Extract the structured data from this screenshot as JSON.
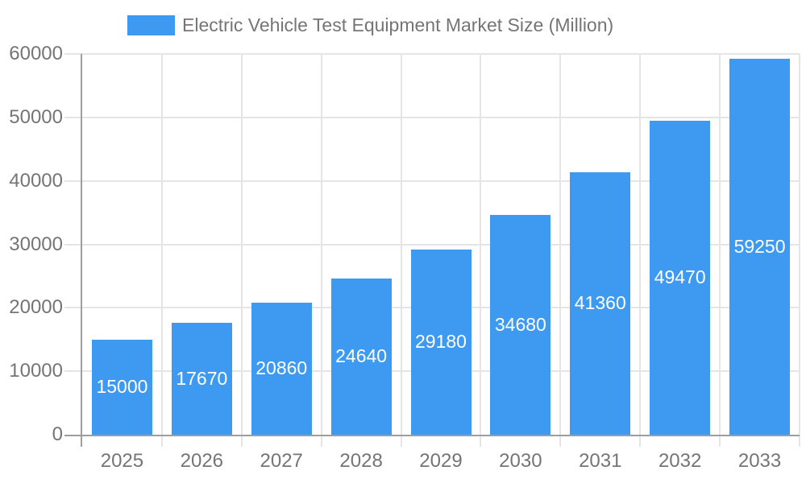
{
  "chart_data": {
    "type": "bar",
    "title": "Electric Vehicle Test Equipment Market Size (Million)",
    "series_name": "Electric Vehicle Test Equipment Market Size (Million)",
    "categories": [
      "2025",
      "2026",
      "2027",
      "2028",
      "2029",
      "2030",
      "2031",
      "2032",
      "2033"
    ],
    "values": [
      15000,
      17670,
      20860,
      24640,
      29180,
      34680,
      41360,
      49470,
      59250
    ],
    "value_labels": [
      "15000",
      "17670",
      "20860",
      "24640",
      "29180",
      "34680",
      "41360",
      "49470",
      "59250"
    ],
    "xlabel": "",
    "ylabel": "",
    "ylim": [
      0,
      60000
    ],
    "yticks": [
      0,
      10000,
      20000,
      30000,
      40000,
      50000,
      60000
    ],
    "ytick_labels": [
      "0",
      "10000",
      "20000",
      "30000",
      "40000",
      "50000",
      "60000"
    ],
    "grid": true,
    "legend_position": "top-center",
    "value_label_position": "inside-center",
    "colors": {
      "bar": "#3D9AF0",
      "axis_line": "#9E9E9E",
      "grid_line": "#E5E5E5",
      "label_text": "#757575",
      "value_text": "#FFFFFF",
      "background": "#FFFFFF"
    }
  }
}
